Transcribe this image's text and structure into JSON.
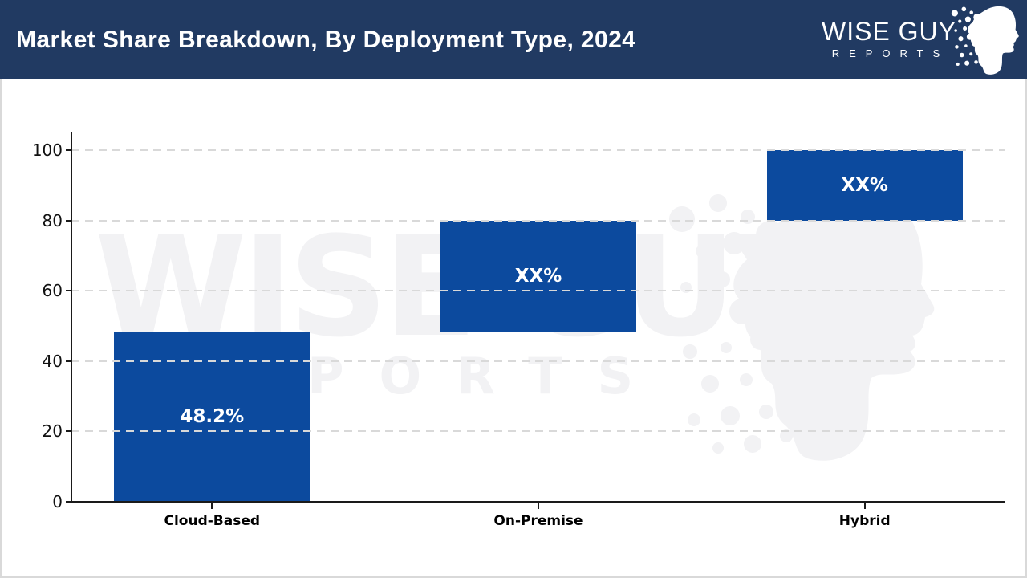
{
  "header": {
    "title": "Market Share Breakdown, By Deployment Type, 2024",
    "logo": {
      "line1": "WISE GUY",
      "line2": "REPORTS"
    }
  },
  "watermark": {
    "line1": "WISE GUY",
    "line2": "REPORTS"
  },
  "colors": {
    "header_bg": "#213A62",
    "bar": "#0C4A9E",
    "grid": "#D9D9D9",
    "axis": "#1A1A1A",
    "watermark": "#F2F2F4",
    "title_text": "#FFFFFF",
    "bar_label_text": "#FFFFFF"
  },
  "chart_data": {
    "type": "bar",
    "subtype": "floating-waterfall",
    "title": "Market Share Breakdown, By Deployment Type, 2024",
    "categories": [
      "Cloud-Based",
      "On-Premise",
      "Hybrid"
    ],
    "segments": [
      {
        "category": "Cloud-Based",
        "start": 0,
        "end": 48.2,
        "label": "48.2%"
      },
      {
        "category": "On-Premise",
        "start": 48.2,
        "end": 80,
        "label": "XX%"
      },
      {
        "category": "Hybrid",
        "start": 80,
        "end": 100,
        "label": "XX%"
      }
    ],
    "yticks": [
      0,
      20,
      40,
      60,
      80,
      100
    ],
    "ylim": [
      0,
      105
    ],
    "xlabel": "",
    "ylabel": "",
    "grid": "dashed horizontal, drawn over bars",
    "legend": "none"
  }
}
